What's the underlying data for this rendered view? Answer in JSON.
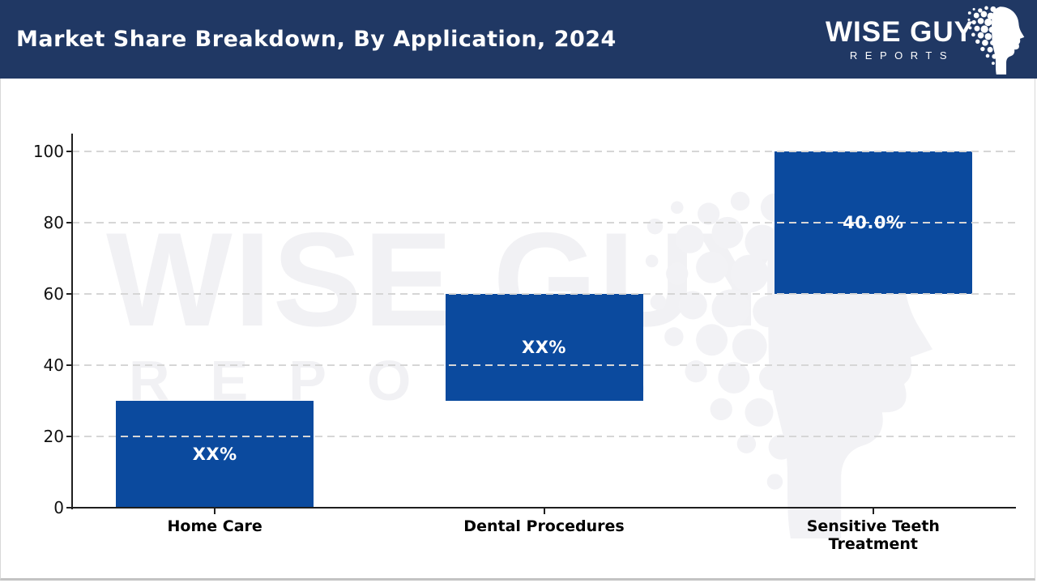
{
  "header": {
    "title": "Market Share Breakdown, By Application, 2024",
    "logo": {
      "line1": "WISE GUY",
      "line2": "REPORTS"
    }
  },
  "watermark": {
    "line1": "WISE GUY",
    "line2": "REPORTS"
  },
  "chart_data": {
    "type": "bar",
    "subtype": "floating-segment-waterfall",
    "title": "Market Share Breakdown, By Application, 2024",
    "categories": [
      "Home Care",
      "Dental Procedures",
      "Sensitive Teeth Treatment"
    ],
    "series": [
      {
        "name": "Home Care",
        "start": 0,
        "end": 30,
        "label": "XX%"
      },
      {
        "name": "Dental Procedures",
        "start": 30,
        "end": 60,
        "label": "XX%"
      },
      {
        "name": "Sensitive Teeth Treatment",
        "start": 60,
        "end": 100,
        "label": "40.0%"
      }
    ],
    "xlabel": "",
    "ylabel": "",
    "ylim": [
      0,
      100
    ],
    "yticks": [
      0,
      20,
      40,
      60,
      80,
      100
    ],
    "grid": {
      "axis": "y",
      "style": "dashed",
      "color": "#d6d6d6"
    },
    "legend": "none",
    "bar_color": "#0b4a9e",
    "bar_label_color": "#ffffff"
  },
  "colors": {
    "header_bg": "#203864",
    "bar": "#0b4a9e",
    "watermark": "#f1f1f4",
    "axis": "#1f1f1f",
    "frame_border": "#d8d8d8"
  }
}
